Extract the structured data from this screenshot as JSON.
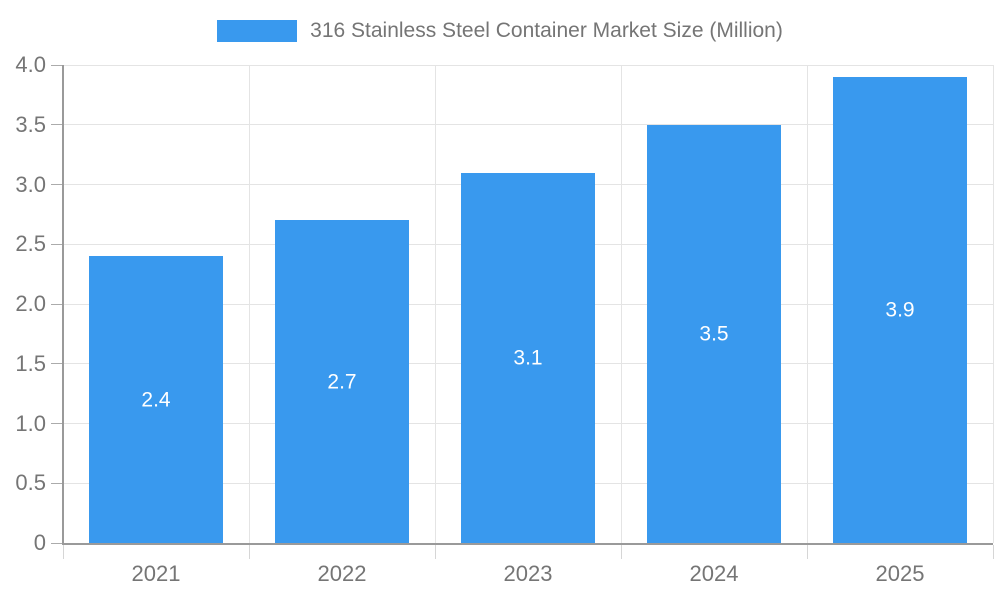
{
  "chart_data": {
    "type": "bar",
    "title": "316 Stainless Steel Container Market Size (Million)",
    "series_name": "316 Stainless Steel Container Market Size (Million)",
    "categories": [
      "2021",
      "2022",
      "2023",
      "2024",
      "2025"
    ],
    "values": [
      2.4,
      2.7,
      3.1,
      3.5,
      3.9
    ],
    "data_labels": [
      "2.4",
      "2.7",
      "3.1",
      "3.5",
      "3.9"
    ],
    "xlabel": "",
    "ylabel": "",
    "ylim": [
      0,
      4.0
    ],
    "y_tick_labels": [
      "0",
      "0.5",
      "1.0",
      "1.5",
      "2.0",
      "2.5",
      "3.0",
      "3.5",
      "4.0"
    ],
    "y_tick_values": [
      0,
      0.5,
      1.0,
      1.5,
      2.0,
      2.5,
      3.0,
      3.5,
      4.0
    ],
    "grid": true,
    "legend_position": "top",
    "data_label_position": "inside-center"
  },
  "colors": {
    "bar": "#3999EE",
    "grid": "#E4E4E4",
    "axis": "#9A9A9A",
    "y_tick_mark": "#ABABAB",
    "x_tick_mark": "#D6D6D6",
    "tick_label_text": "#757575",
    "legend_text": "#757575",
    "bar_label_text": "#FFFFFF",
    "background": "#FFFFFF"
  }
}
